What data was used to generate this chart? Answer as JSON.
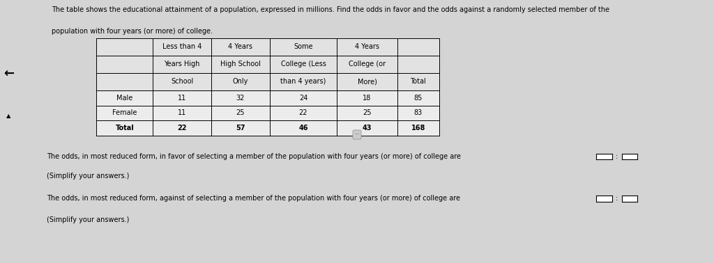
{
  "title_line1": "The table shows the educational attainment of a population, expressed in millions. Find the odds in favor and the odds against a randomly selected member of the",
  "title_line2": "population with four years (or more) of college.",
  "row_labels": [
    "Male",
    "Female",
    "Total"
  ],
  "col_header_row1": [
    "Less than 4",
    "4 Years",
    "Some",
    "4 Years",
    ""
  ],
  "col_header_row2": [
    "Years High",
    "High School",
    "College (Less",
    "College (or",
    ""
  ],
  "col_header_row3": [
    "School",
    "Only",
    "than 4 years)",
    "More)",
    "Total"
  ],
  "data": [
    [
      11,
      32,
      24,
      18,
      85
    ],
    [
      11,
      25,
      22,
      25,
      83
    ],
    [
      22,
      57,
      46,
      43,
      168
    ]
  ],
  "text1": "The odds, in most reduced form, in favor of selecting a member of the population with four years (or more) of college are",
  "text2": "(Simplify your answers.)",
  "text3": "The odds, in most reduced form, against of selecting a member of the population with four years (or more) of college are",
  "text4": "(Simplify your answers.)",
  "top_bg": "#d4d4d4",
  "bottom_bg": "#d4d4d4",
  "divider_color": "#888888",
  "table_header_bg": "#e2e2e2",
  "table_data_bg": "#ececec",
  "table_border": "#000000",
  "left_strip_color": "#7a7a7a"
}
